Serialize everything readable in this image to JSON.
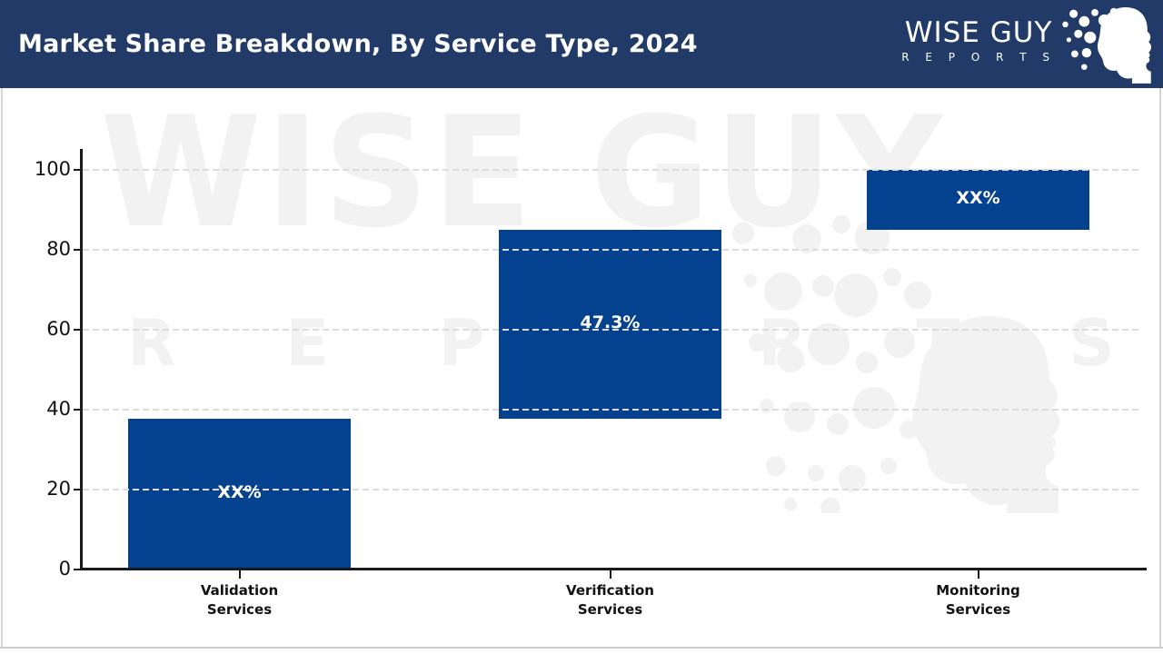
{
  "header": {
    "title": "Market Share Breakdown, By Service Type, 2024",
    "logo": {
      "name": "WISE GUY",
      "sub": "R E P O R T S"
    }
  },
  "watermark": {
    "big_text": "WISE GUY",
    "sub_text": "R E P O R T S"
  },
  "chart_data": {
    "type": "bar",
    "subtype": "waterfall",
    "title": "Market Share Breakdown, By Service Type, 2024",
    "categories": [
      "Validation Services",
      "Verification Services",
      "Monitoring Services"
    ],
    "segments": [
      {
        "category": "Validation Services",
        "label_lines": [
          "Validation",
          "Services"
        ],
        "start": 0,
        "end": 37.7,
        "value_label": "XX%"
      },
      {
        "category": "Verification Services",
        "label_lines": [
          "Verification",
          "Services"
        ],
        "start": 37.7,
        "end": 85,
        "value_label": "47.3%"
      },
      {
        "category": "Monitoring Services",
        "label_lines": [
          "Monitoring",
          "Services"
        ],
        "start": 85,
        "end": 100,
        "value_label": "XX%"
      }
    ],
    "ylim": [
      0,
      100
    ],
    "yticks": [
      0,
      20,
      40,
      60,
      80,
      100
    ],
    "grid": {
      "horizontal": true,
      "style": "dashed",
      "color": "#dcdcdc"
    },
    "legend": "none",
    "bar_color": "#04418f",
    "value_label_color": "#ffffff"
  },
  "colors": {
    "header_bg": "#223a67",
    "bar": "#04418f",
    "axis": "#1a1a1a",
    "grid": "#dcdcdc",
    "watermark": "#f2f2f2",
    "card_border": "#cccccc"
  }
}
